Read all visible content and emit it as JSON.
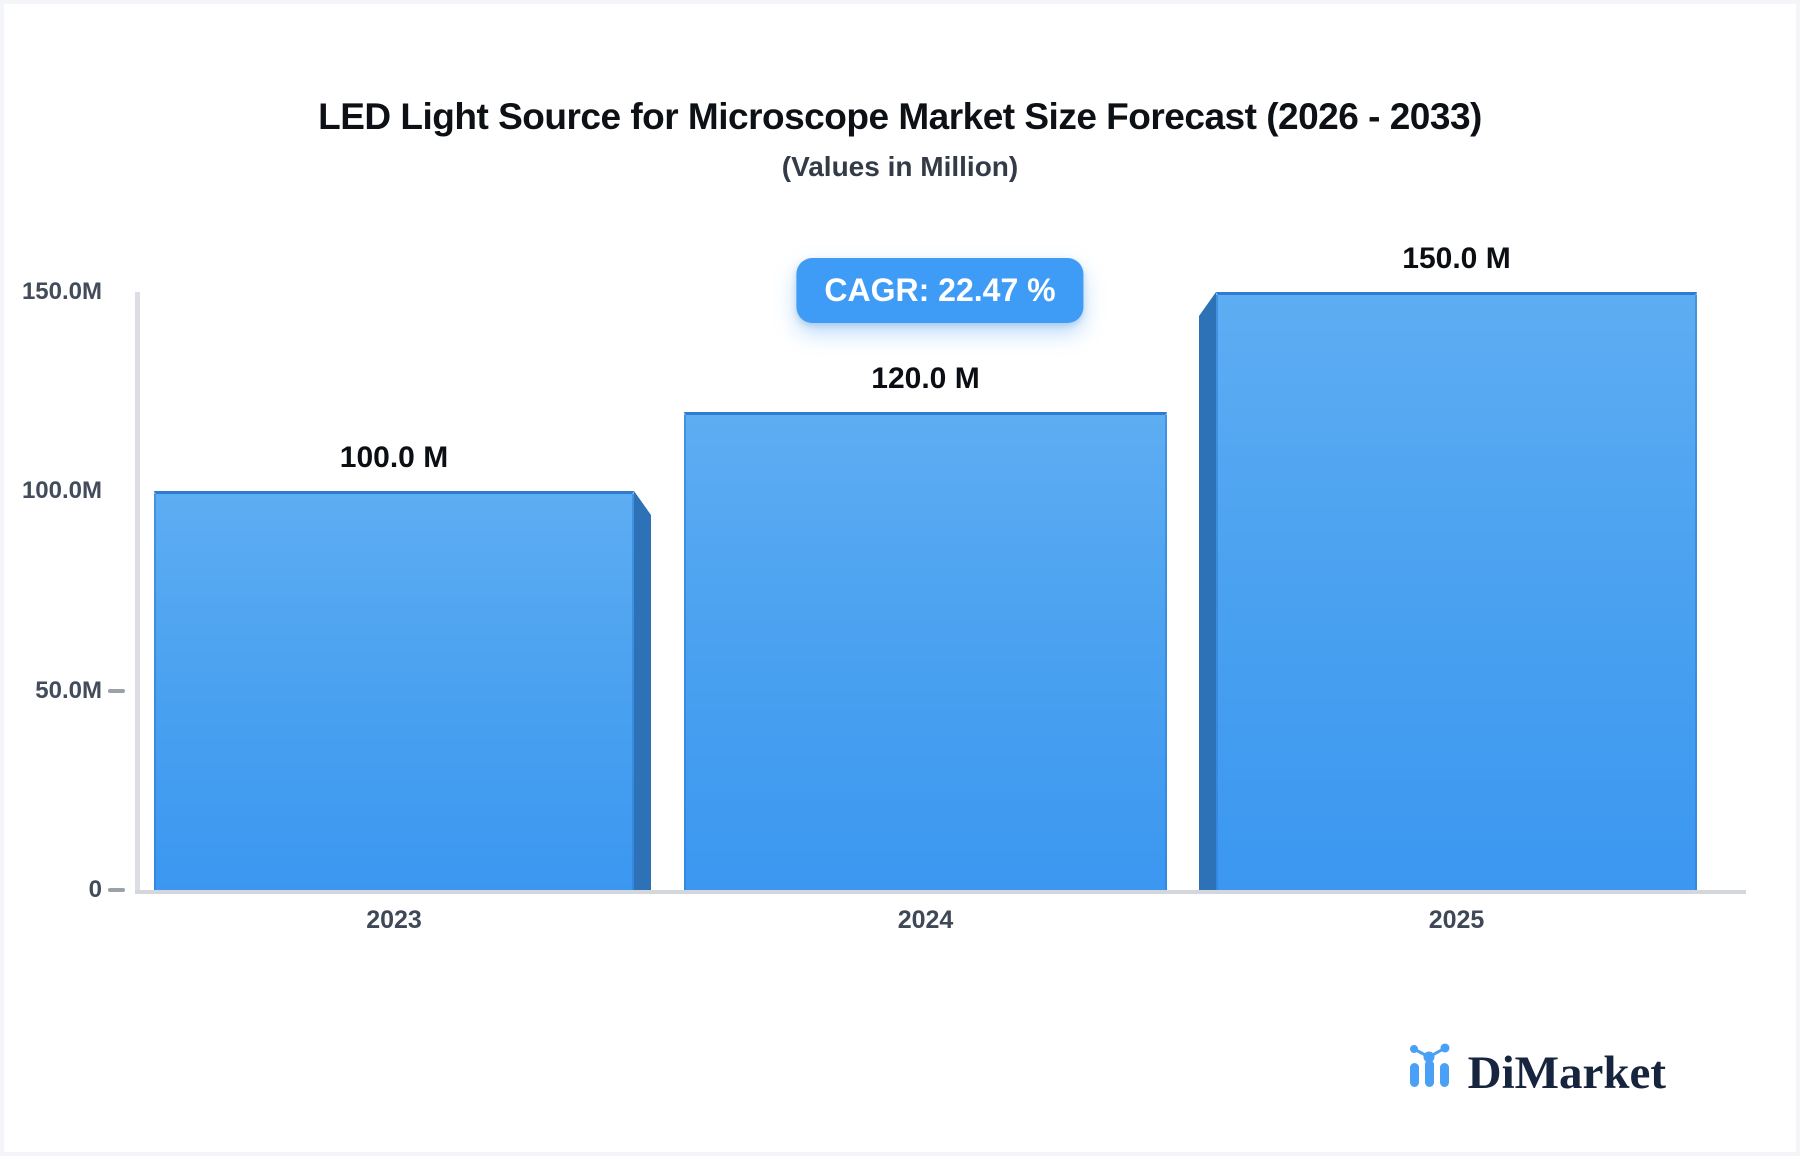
{
  "header": {
    "title": "LED Light Source for Microscope Market Size Forecast (2026 - 2033)",
    "subtitle": "(Values in Million)"
  },
  "badge": {
    "label": "CAGR: 22.47 %"
  },
  "logo": {
    "name": "DiMarket",
    "icon": "bar-chart-with-trendline-icon"
  },
  "colors": {
    "bar_gradient_top": "#5dadf2",
    "bar_gradient_bottom": "#3b97f0",
    "bar_border": "#2e7bd0",
    "bar_side_shadow": "#2d72b7",
    "badge_background": "#3e9cf7",
    "badge_text": "#ffffff",
    "axis_line": "#d3d6db",
    "axis_text": "#424c5b",
    "title_text": "#0d1116",
    "logo_text": "#16243d",
    "logo_icon": "#4aa0f5"
  },
  "chart_data": {
    "type": "bar",
    "title": "LED Light Source for Microscope Market Size Forecast (2026 - 2033)",
    "subtitle": "(Values in Million)",
    "unit": "Million",
    "categories": [
      "2023",
      "2024",
      "2025"
    ],
    "values": [
      100.0,
      120.0,
      150.0
    ],
    "bar_labels": [
      "100.0 M",
      "120.0 M",
      "150.0 M"
    ],
    "y_axis": {
      "range": [
        0,
        150
      ],
      "ticks": [
        {
          "label": "150.0M",
          "value": 150,
          "dash": false
        },
        {
          "label": "100.0M",
          "value": 100,
          "dash": false
        },
        {
          "label": "50.0M",
          "value": 50,
          "dash": true
        },
        {
          "label": "0",
          "value": 0,
          "dash": true
        }
      ]
    },
    "annotations": [
      {
        "text": "CAGR: 22.47 %",
        "position": "top-center"
      }
    ],
    "legend": false,
    "grid": false
  }
}
